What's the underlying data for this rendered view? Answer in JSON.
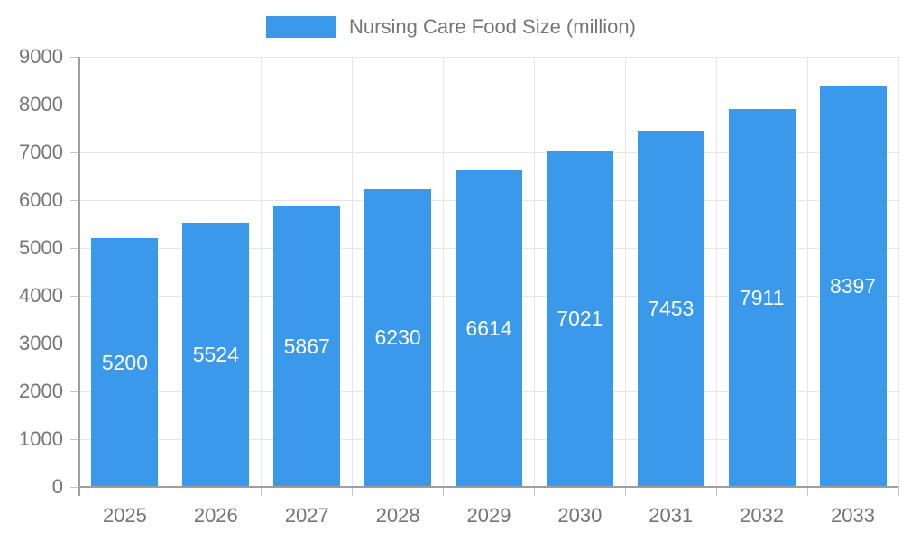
{
  "chart_data": {
    "type": "bar",
    "title": "Nursing Care Food Size (million)",
    "categories": [
      "2025",
      "2026",
      "2027",
      "2028",
      "2029",
      "2030",
      "2031",
      "2032",
      "2033"
    ],
    "values": [
      5200,
      5524,
      5867,
      6230,
      6614,
      7021,
      7453,
      7911,
      8397
    ],
    "xlabel": "",
    "ylabel": "",
    "ylim": [
      0,
      9000
    ],
    "ytick_step": 1000,
    "yticks": [
      0,
      1000,
      2000,
      3000,
      4000,
      5000,
      6000,
      7000,
      8000,
      9000
    ],
    "grid": true,
    "legend_position": "top",
    "value_labels": "centered-inside-bars",
    "colors": {
      "bar": "#3b99ec",
      "bar_value_text": "#ffffff",
      "axis_text": "#757575",
      "grid_line": "#e6e6e6",
      "axis_line": "#9e9e9e",
      "tick_line": "#c4c4c4"
    }
  }
}
